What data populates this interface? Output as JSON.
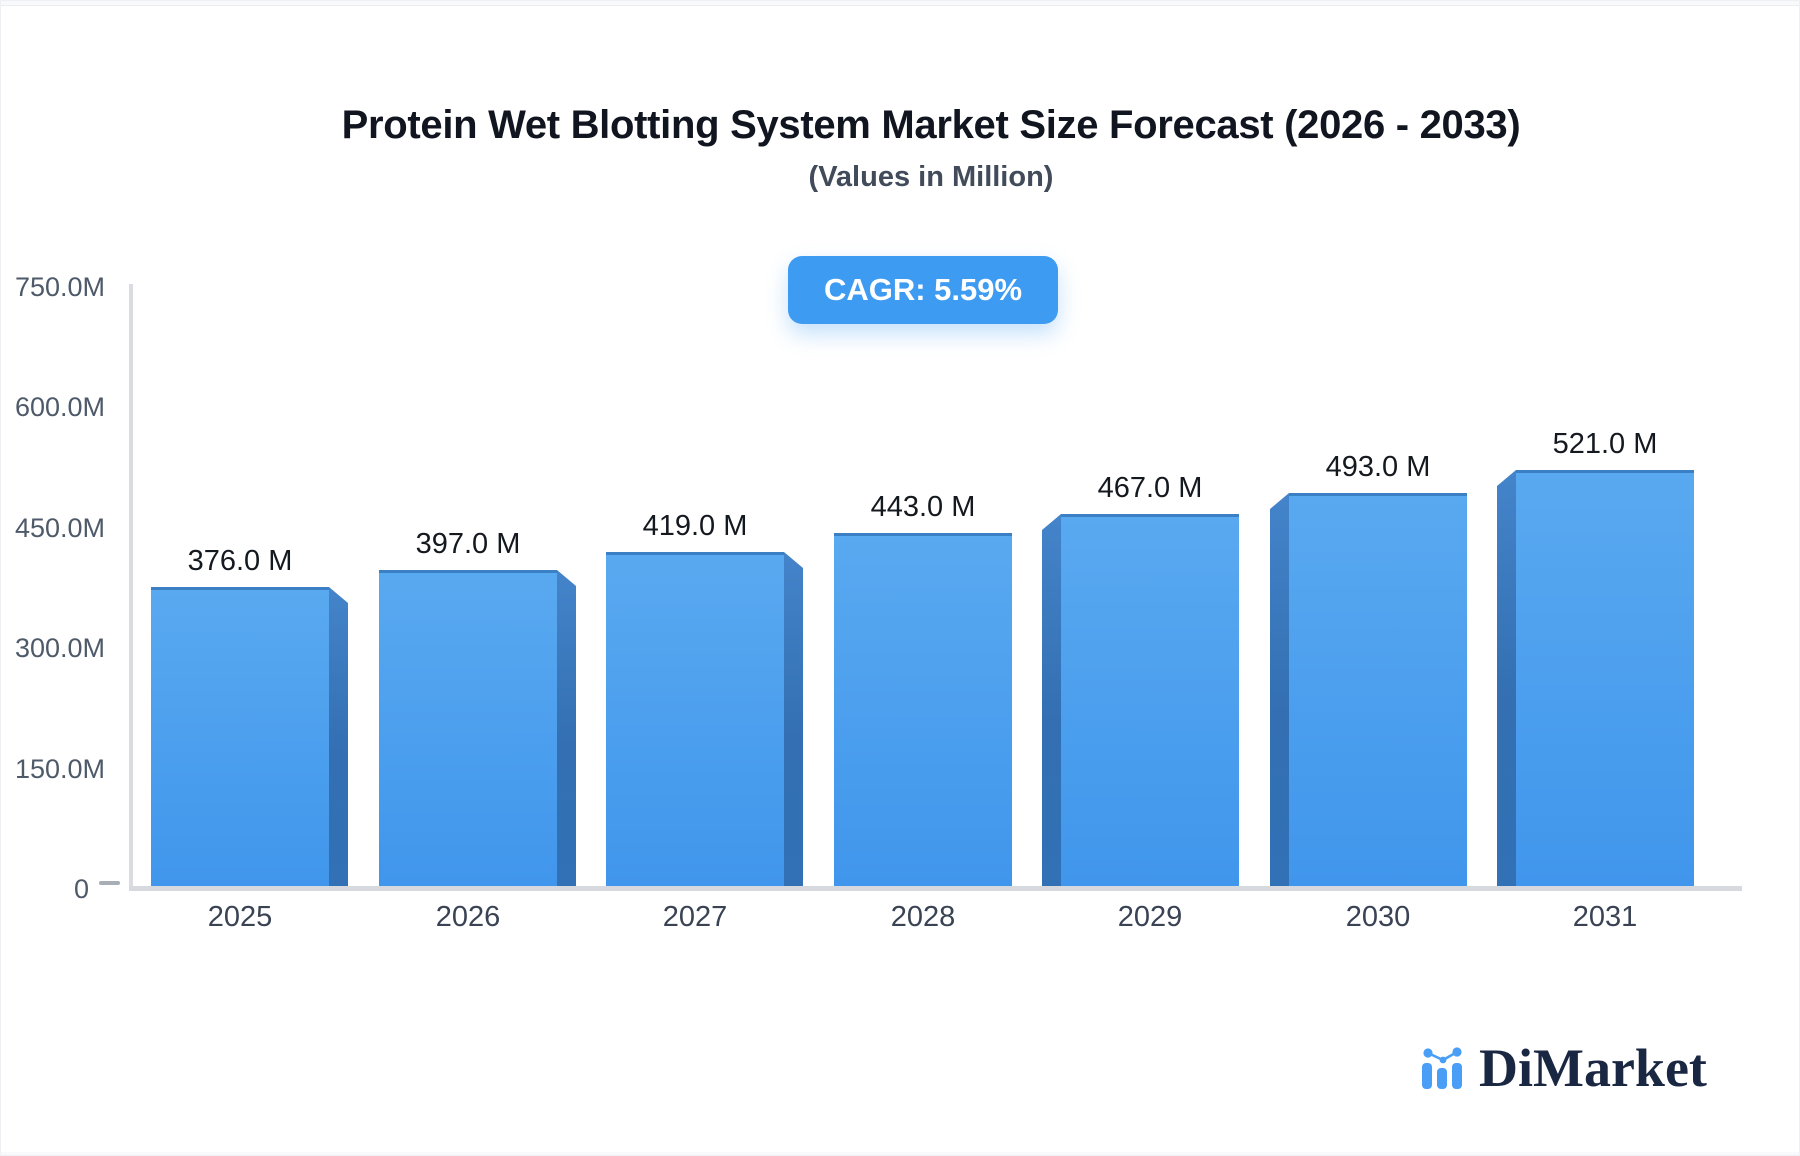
{
  "page": {
    "title": "Protein Wet Blotting System Market Size Forecast (2026 - 2033)",
    "subtitle": "(Values in Million)",
    "cagr_badge_label": "CAGR: 5.59%",
    "logo_text": "DiMarket"
  },
  "chart_data": {
    "type": "bar",
    "title": "Protein Wet Blotting System Market Size Forecast (2026 - 2033)",
    "subtitle": "(Values in Million)",
    "unit": "Million",
    "cagr_text": "CAGR: 5.59%",
    "cagr_percent": 5.59,
    "categories": [
      "2025",
      "2026",
      "2027",
      "2028",
      "2029",
      "2030",
      "2031"
    ],
    "values": [
      376,
      397,
      419,
      443,
      467,
      493,
      521
    ],
    "value_labels": [
      "376.0 M",
      "397.0 M",
      "419.0 M",
      "443.0 M",
      "467.0 M",
      "493.0 M",
      "521.0 M"
    ],
    "ylim": [
      0,
      750
    ],
    "ytick_values": [
      750,
      600,
      450,
      300,
      150,
      0
    ],
    "ytick_labels": [
      "750.0M",
      "600.0M",
      "450.0M",
      "300.0M",
      "150.0M",
      "0"
    ],
    "grid": false,
    "legend": false,
    "bar_style": "3d-perspective-toward-center"
  },
  "colors": {
    "bar_face_top": "#59a9f0",
    "bar_face_bottom": "#4096ec",
    "bar_side": "#336fb2",
    "badge_background": "#3e9bf2",
    "badge_text": "#ffffff",
    "axis_line": "#d6d9dd",
    "logo_blue": "#4b9ef5",
    "logo_navy": "#1a2742"
  },
  "icons": {
    "logo_icon": "bar-chart-trend-icon"
  }
}
